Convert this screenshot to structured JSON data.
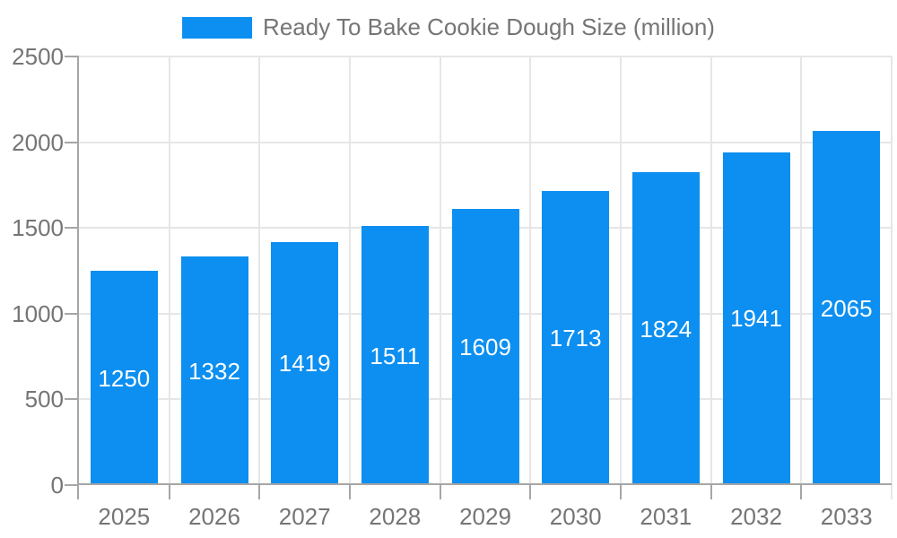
{
  "colors": {
    "bar": "#0c8ff0",
    "grid": "#e6e6e6",
    "axis": "#a6a6a6",
    "text": "#757575",
    "bar_label": "#ffffff",
    "background": "#ffffff"
  },
  "legend": {
    "label": "Ready To Bake Cookie Dough Size (million)"
  },
  "chart_data": {
    "type": "bar",
    "title": "Ready To Bake Cookie Dough Size (million)",
    "categories": [
      "2025",
      "2026",
      "2027",
      "2028",
      "2029",
      "2030",
      "2031",
      "2032",
      "2033"
    ],
    "series": [
      {
        "name": "Ready To Bake Cookie Dough Size (million)",
        "values": [
          1250,
          1332,
          1419,
          1511,
          1609,
          1713,
          1824,
          1941,
          2065
        ]
      }
    ],
    "xlabel": "",
    "ylabel": "",
    "ylim": [
      0,
      2500
    ],
    "yticks": [
      0,
      500,
      1000,
      1500,
      2000,
      2500
    ],
    "grid": true,
    "legend_position": "top",
    "data_labels_visible": true
  }
}
